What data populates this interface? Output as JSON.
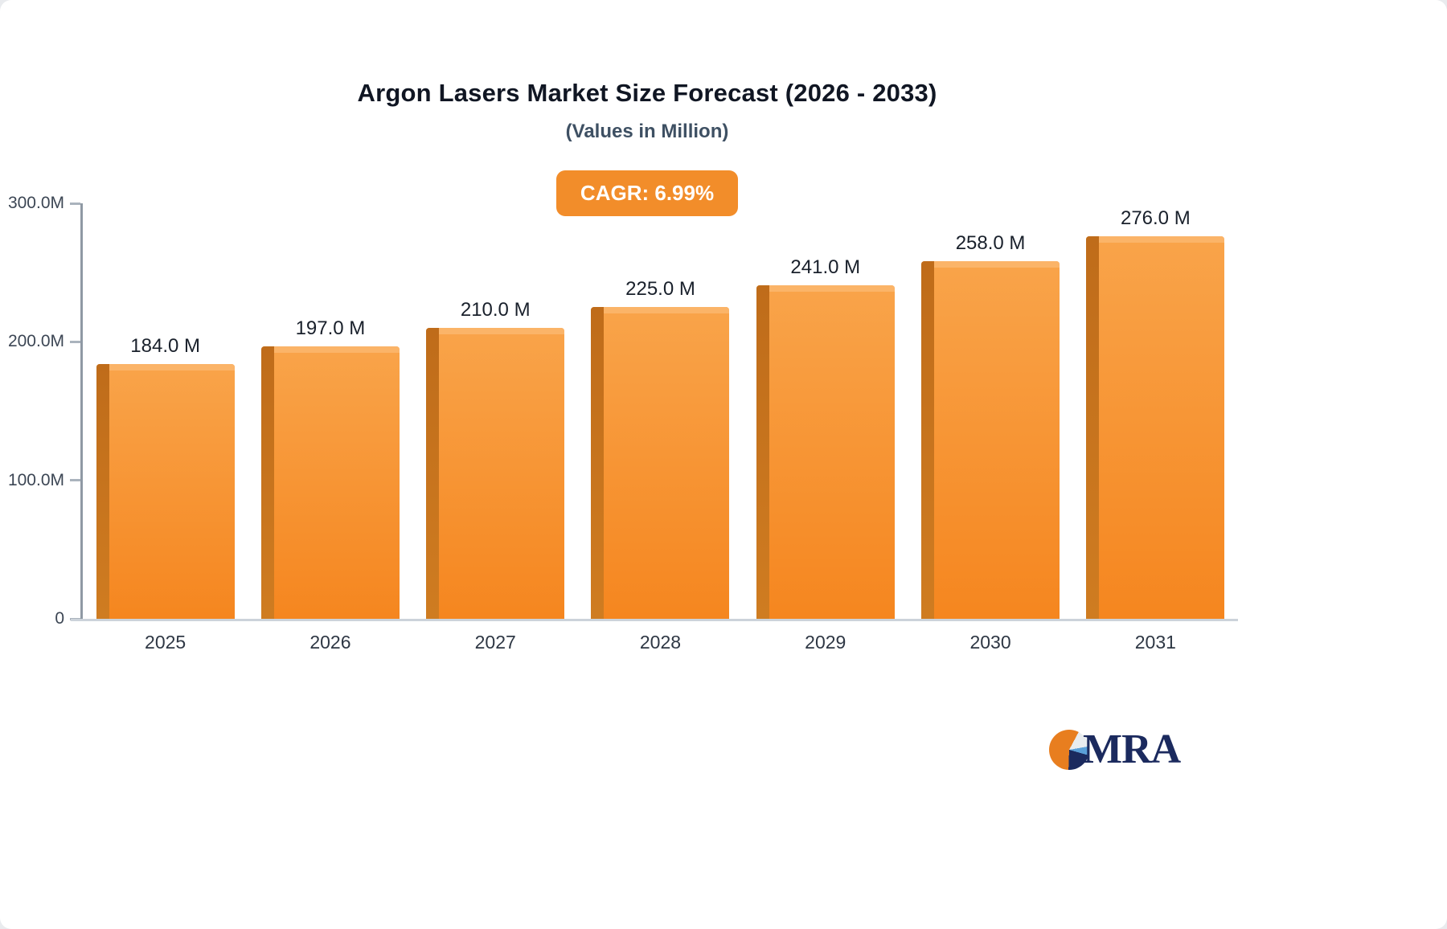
{
  "title": "Argon Lasers Market Size Forecast (2026 - 2033)",
  "subtitle": "(Values in Million)",
  "cagr_label": "CAGR: 6.99%",
  "logo": {
    "text": "MRA"
  },
  "colors": {
    "badge_bg": "#f28d2a",
    "bar_main_top": "#f9a44a",
    "bar_main_bottom": "#f5861f",
    "bar_side": "#bf6c1a",
    "bar_top": "#fbb468",
    "logo_orange": "#e87e1f",
    "logo_navy": "#1b2a5e"
  },
  "chart_data": {
    "type": "bar",
    "categories": [
      "2025",
      "2026",
      "2027",
      "2028",
      "2029",
      "2030",
      "2031"
    ],
    "values": [
      184.0,
      197.0,
      210.0,
      225.0,
      241.0,
      258.0,
      276.0
    ],
    "value_labels": [
      "184.0 M",
      "197.0 M",
      "210.0 M",
      "225.0 M",
      "241.0 M",
      "258.0 M",
      "276.0 M"
    ],
    "title": "Argon Lasers Market Size Forecast (2026 - 2033)",
    "subtitle": "(Values in Million)",
    "xlabel": "",
    "ylabel": "",
    "ylim": [
      0,
      300
    ],
    "grid": false,
    "legend": false,
    "yticks": [
      {
        "value": 300,
        "label": "300.0M"
      },
      {
        "value": 200,
        "label": "200.0M"
      },
      {
        "value": 100,
        "label": "100.0M"
      },
      {
        "value": 0,
        "label": "0"
      }
    ]
  }
}
